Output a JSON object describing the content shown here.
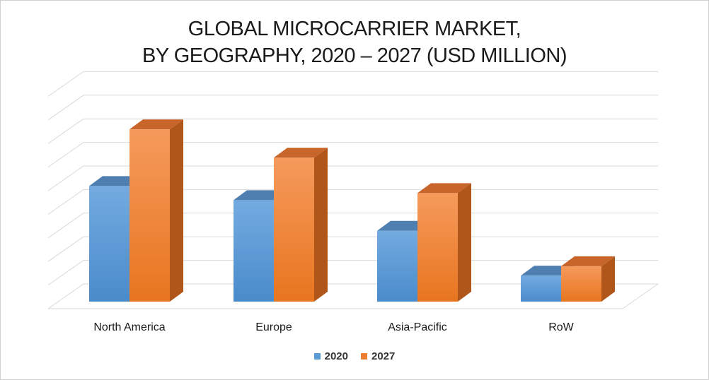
{
  "chart_data": {
    "type": "bar",
    "title_lines": [
      "GLOBAL MICROCARRIER MARKET,",
      "BY GEOGRAPHY, 2020 – 2027 (USD MILLION)"
    ],
    "categories": [
      "North America",
      "Europe",
      "Asia-Pacific",
      "RoW"
    ],
    "series": [
      {
        "name": "2020",
        "values": [
          49,
          43,
          30,
          11
        ],
        "color": "#5B9BD5"
      },
      {
        "name": "2027",
        "values": [
          73,
          61,
          46,
          15
        ],
        "color": "#ED7D31"
      }
    ],
    "ylim": [
      0,
      90
    ],
    "grid": true,
    "style": "3d-column",
    "legend_position": "bottom"
  }
}
